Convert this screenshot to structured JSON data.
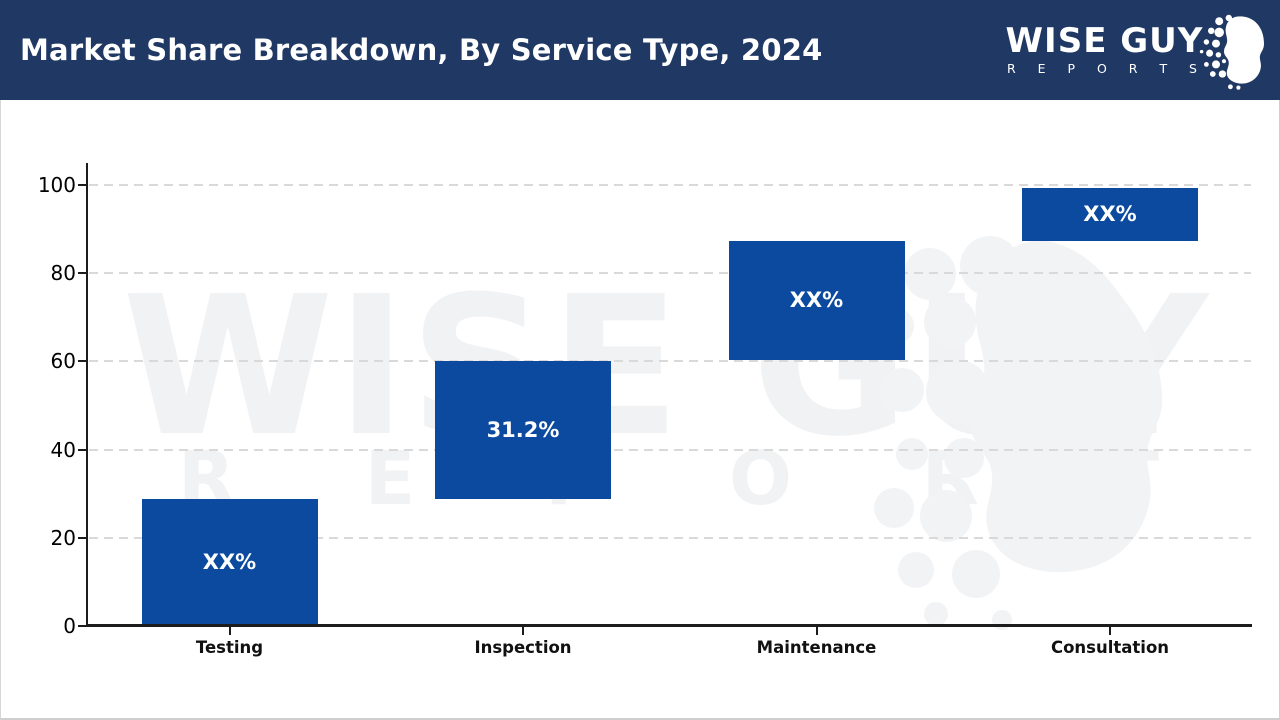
{
  "header": {
    "title": "Market Share Breakdown, By Service Type, 2024",
    "bg_color": "#203864",
    "logo": {
      "line1": "WISE GUY",
      "line2": "R E P O R T S"
    }
  },
  "watermark": {
    "line1": "WISE GUY",
    "line2": "R E P O R T S"
  },
  "chart_data": {
    "type": "bar",
    "subtype": "waterfall",
    "title": "Market Share Breakdown, By Service Type, 2024",
    "categories": [
      "Testing",
      "Inspection",
      "Maintenance",
      "Consultation"
    ],
    "segments": [
      {
        "category": "Testing",
        "start": 0,
        "end": 28.8,
        "label": "XX%"
      },
      {
        "category": "Inspection",
        "start": 28.8,
        "end": 60,
        "label": "31.2%"
      },
      {
        "category": "Maintenance",
        "start": 60.4,
        "end": 87.2,
        "label": "XX%"
      },
      {
        "category": "Consultation",
        "start": 87.2,
        "end": 99.4,
        "label": "XX%"
      }
    ],
    "ylim": [
      0,
      100
    ],
    "yticks": [
      0,
      20,
      40,
      60,
      80,
      100
    ],
    "xlabel": "",
    "ylabel": "",
    "grid": "dashed-horizontal",
    "legend": null,
    "bar_color": "#0b4a9f",
    "bar_label_color": "#ffffff",
    "axis_color": "#1c1c1c",
    "gridline_color": "#d9d9d9"
  }
}
